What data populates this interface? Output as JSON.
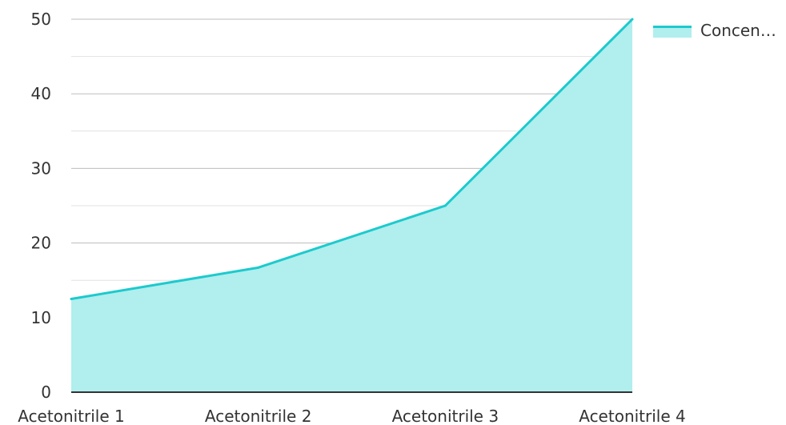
{
  "chart_data": {
    "type": "area",
    "categories": [
      "Acetonitrile 1",
      "Acetonitrile 2",
      "Acetonitrile 3",
      "Acetonitrile 4"
    ],
    "series": [
      {
        "name": "Concen…",
        "values": [
          12.5,
          16.7,
          25,
          50
        ]
      }
    ],
    "ylim": [
      0,
      50
    ],
    "yticks": [
      0,
      10,
      20,
      30,
      40,
      50
    ],
    "grid": true,
    "legend_position": "top-right",
    "colors": {
      "line": "#1ccacd",
      "fill": "#b1eeee",
      "grid_major": "#bdbdbd",
      "grid_minor": "#e2e2e2",
      "axis": "#333333"
    }
  }
}
